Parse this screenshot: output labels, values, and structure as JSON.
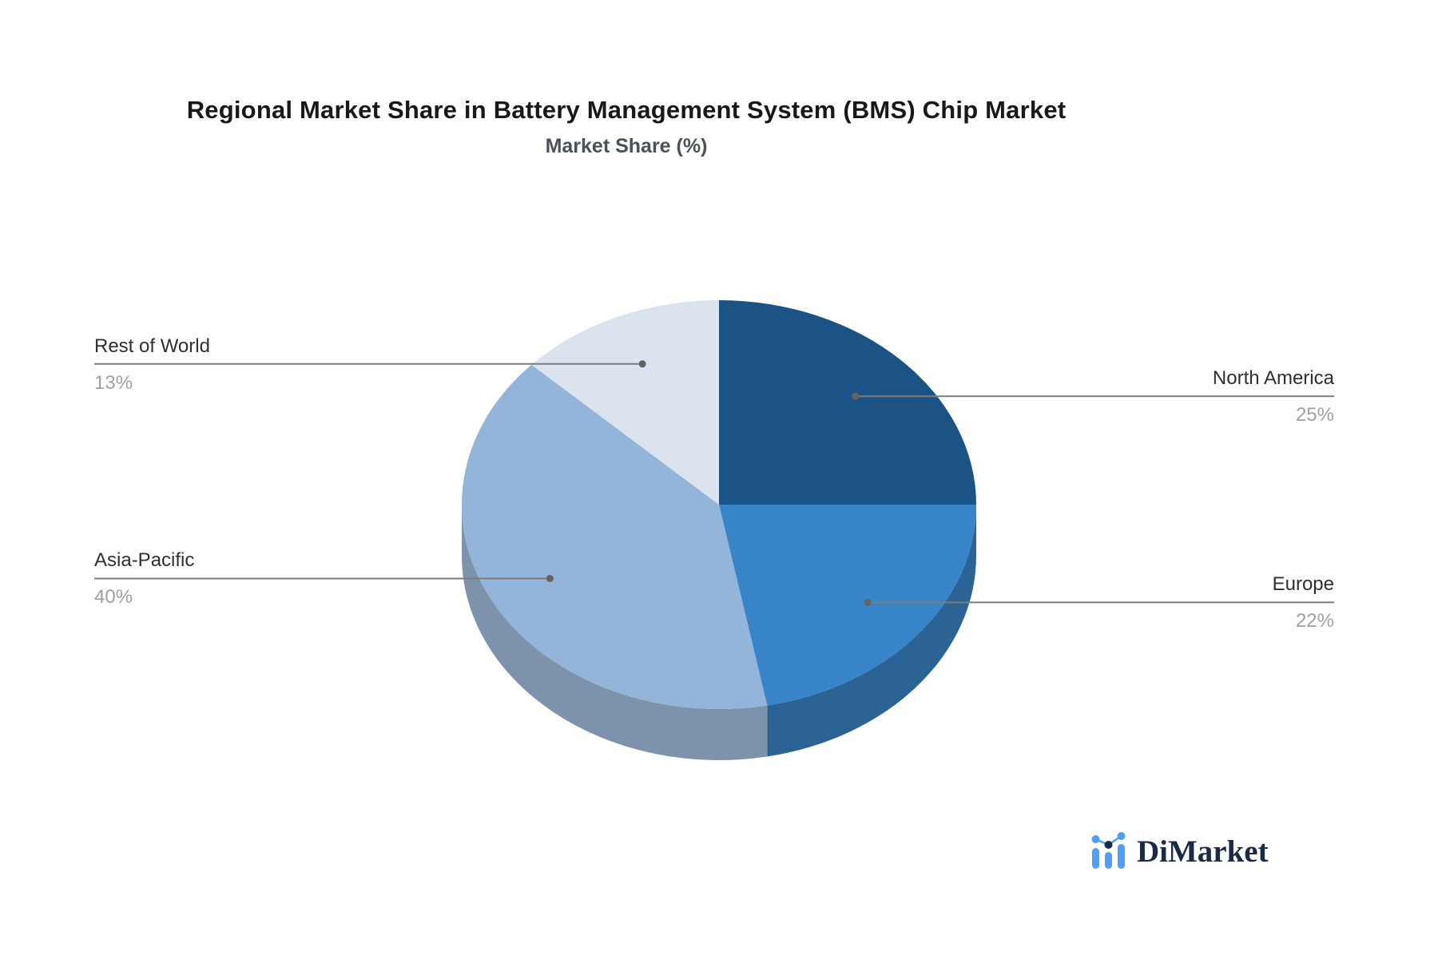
{
  "header": {
    "title": "Regional Market Share in Battery Management System (BMS) Chip Market",
    "subtitle": "Market Share (%)"
  },
  "chart_data": {
    "type": "pie",
    "title": "Regional Market Share in Battery Management System (BMS) Chip Market",
    "subtitle": "Market Share (%)",
    "unit": "%",
    "categories": [
      "North America",
      "Europe",
      "Asia-Pacific",
      "Rest of World"
    ],
    "values": [
      25,
      22,
      40,
      13
    ],
    "display_values": [
      "25%",
      "22%",
      "40%",
      "13%"
    ],
    "colors": [
      "#1a5384",
      "#3785c8",
      "#93b5d9",
      "#dbe3ee"
    ],
    "side_colors": [
      "#14436b",
      "#2c6395",
      "#7c93ab",
      "#b8c2d2"
    ],
    "start_angle_deg": 0,
    "direction": "clockwise",
    "style_3d": true,
    "legend": "none",
    "label_sides": [
      "right",
      "right",
      "left",
      "left"
    ],
    "leader_line_color": "#7c7c7c",
    "leader_dot_color": "#636363"
  },
  "logo": {
    "text": "DiMarket",
    "icon": "bar-line-chart-icon",
    "icon_blue": "#4d9ff7",
    "icon_navy": "#1b2a45"
  }
}
